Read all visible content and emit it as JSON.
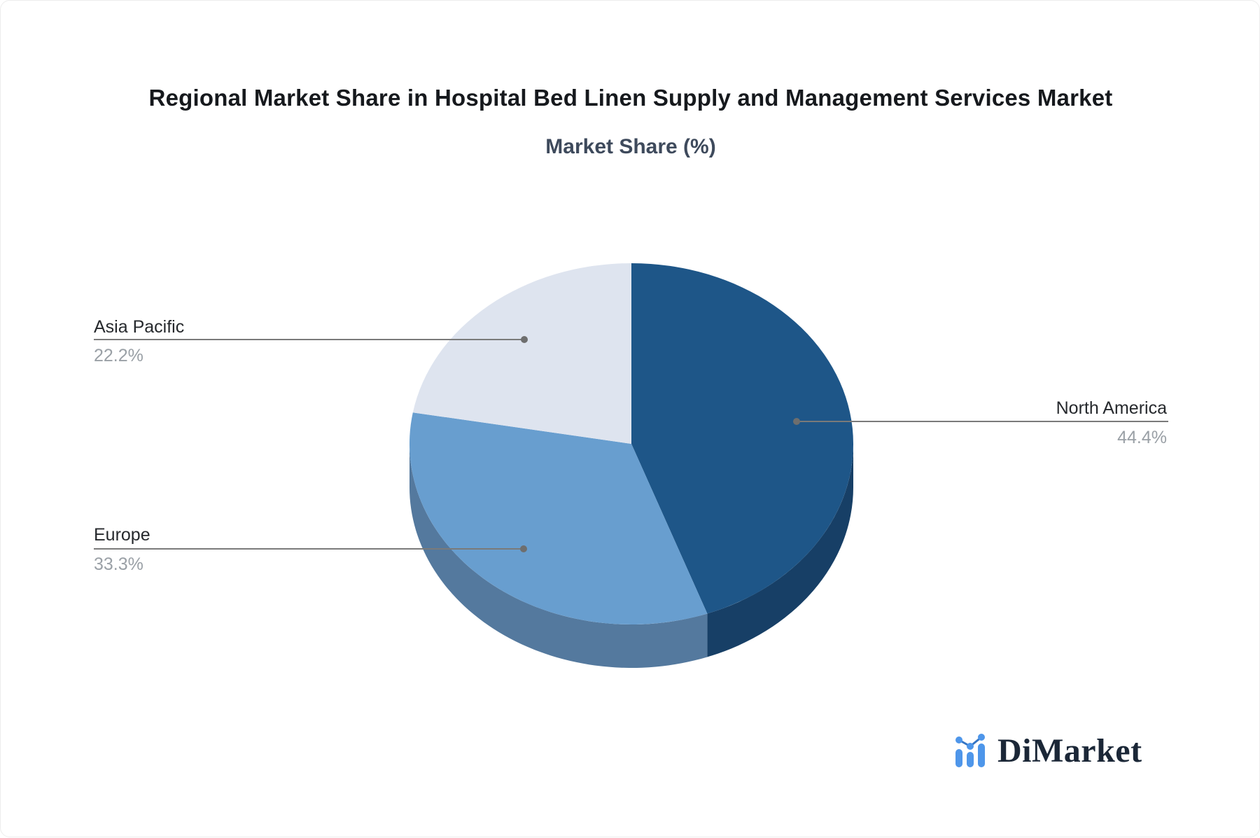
{
  "chart_data": {
    "type": "pie",
    "title": "Regional Market Share in Hospital Bed Linen Supply and Management Services Market",
    "subtitle": "Market Share (%)",
    "unit": "%",
    "legend_position": "none",
    "label_style": "leader-lines",
    "start_angle_deg": 0,
    "direction": "clockwise",
    "effect_3d": true,
    "slices": [
      {
        "label": "North America",
        "value": 44.4,
        "pct_label": "44.4%",
        "color": "#1E5688",
        "side_color": "#173F66"
      },
      {
        "label": "Europe",
        "value": 33.3,
        "pct_label": "33.3%",
        "color": "#689ECF",
        "side_color": "#54799E"
      },
      {
        "label": "Asia Pacific",
        "value": 22.2,
        "pct_label": "22.2%",
        "color": "#DEE4EF",
        "side_color": "#B8C3D8"
      }
    ],
    "leader_line_color": "#7a7a7a",
    "leader_dot_color": "#6e6e6e",
    "label_name_color": "#26292d",
    "label_pct_color": "#9aa0a6"
  },
  "branding": {
    "logo_text": "DiMarket",
    "logo_icon": "bar-chart-trend-icon",
    "logo_bar_color": "#4e96ea",
    "logo_line_color": "#3575c4",
    "logo_text_color": "#1b2737"
  }
}
